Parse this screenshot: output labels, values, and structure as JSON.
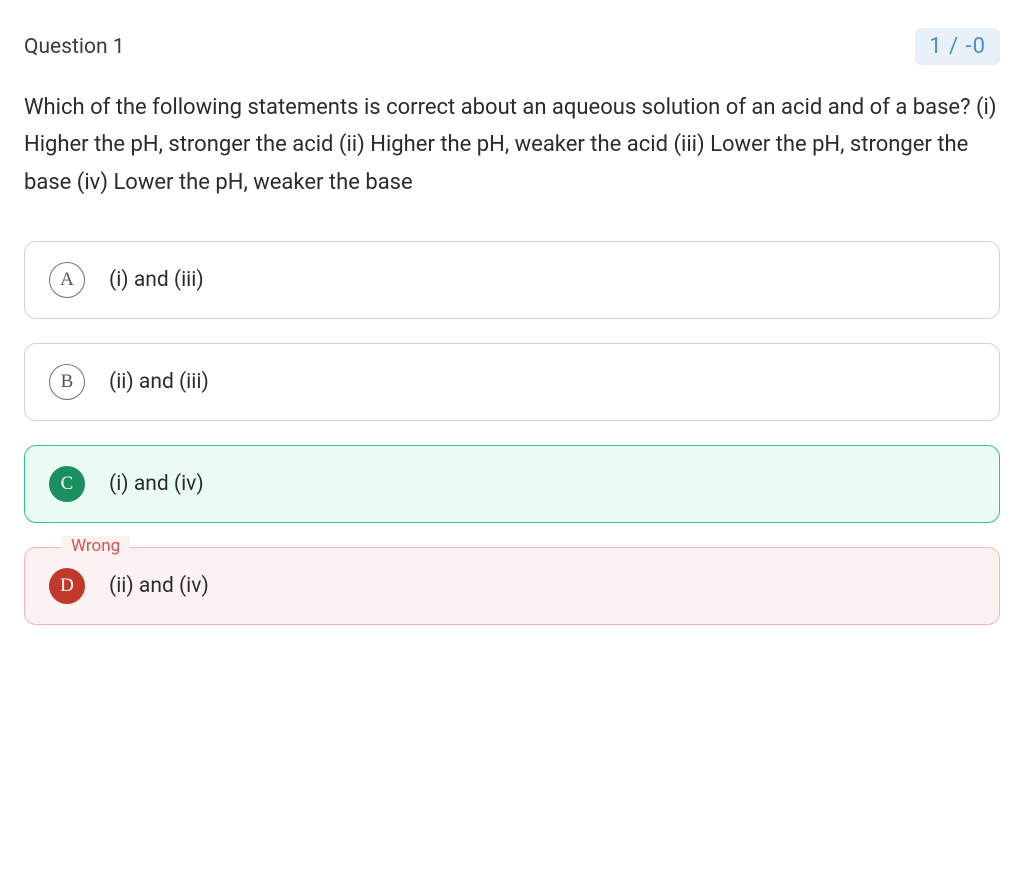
{
  "header": {
    "title": "Question 1",
    "score": "1 / -0"
  },
  "question": {
    "text": "Which of the following statements is correct about an aqueous solution of an acid and of a base? (i) Higher the pH, stronger the acid (ii) Higher the pH, weaker the acid (iii) Lower the pH, stronger the base (iv) Lower the pH, weaker the base"
  },
  "options": {
    "a": {
      "letter": "A",
      "text": "(i) and (iii)"
    },
    "b": {
      "letter": "B",
      "text": "(ii) and (iii)"
    },
    "c": {
      "letter": "C",
      "text": "(i) and (iv)"
    },
    "d": {
      "letter": "D",
      "text": "(ii) and (iv)",
      "status": "Wrong"
    }
  },
  "styling": {
    "colors": {
      "background": "#ffffff",
      "text_primary": "#2c2c2c",
      "text_muted": "#3c3c3c",
      "score_bg": "#e8f0f8",
      "score_text": "#4a90c2",
      "option_border": "#d0d4d8",
      "letter_border": "#6b7280",
      "letter_text": "#4b5563",
      "correct_border": "#34c38f",
      "correct_bg": "#eafbf3",
      "correct_fill": "#1a8f5f",
      "wrong_border": "#f5b5b5",
      "wrong_bg": "#fdf2f2",
      "wrong_fill": "#c0392b",
      "wrong_label": "#d9534f"
    },
    "font_sizes": {
      "title": 21,
      "score": 22,
      "question": 22,
      "option_letter": 19,
      "option_text": 21,
      "status_label": 17
    },
    "border_radius": {
      "option": 12,
      "letter": 18,
      "score": 6
    }
  }
}
